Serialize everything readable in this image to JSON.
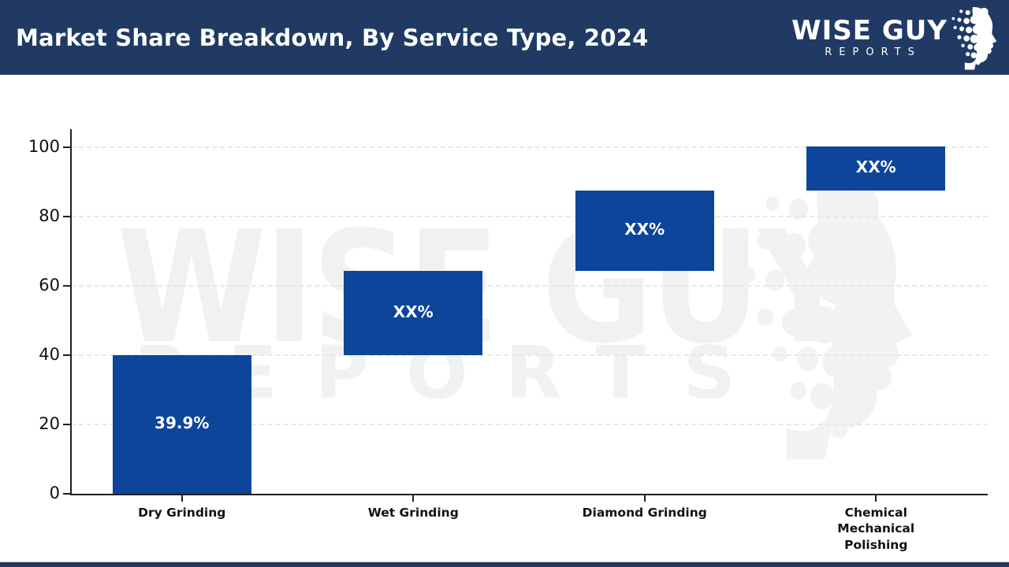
{
  "header": {
    "title": "Market Share Breakdown, By Service Type, 2024",
    "logo": {
      "line1": "WISE GUY",
      "line2": "REPORTS"
    }
  },
  "watermark": {
    "line1": "WISE GUY",
    "line2": "REPORTS"
  },
  "colors": {
    "header_bg": "#203a64",
    "footer_bg": "#203a64",
    "bar": "#0c4599",
    "bar_label": "#ffffff",
    "axis": "#1f1f1f",
    "gridline": "#e7e7e7",
    "watermark": "#f1f1f1"
  },
  "chart_data": {
    "type": "bar",
    "subtype": "waterfall-stacked-progression",
    "title": "Market Share Breakdown, By Service Type, 2024",
    "categories": [
      "Dry Grinding",
      "Wet Grinding",
      "Diamond Grinding",
      "Chemical Mechanical Polishing"
    ],
    "segments": [
      {
        "category": "Dry Grinding",
        "start": 0,
        "end": 39.9,
        "label": "39.9%"
      },
      {
        "category": "Wet Grinding",
        "start": 40.0,
        "end": 64.3,
        "label": "XX%"
      },
      {
        "category": "Diamond Grinding",
        "start": 64.3,
        "end": 87.6,
        "label": "XX%"
      },
      {
        "category": "Chemical Mechanical Polishing",
        "start": 87.6,
        "end": 100.2,
        "label": "XX%"
      }
    ],
    "yticks": [
      0,
      20,
      40,
      60,
      80,
      100
    ],
    "ylim": [
      0,
      105
    ],
    "xlabel": "",
    "ylabel": "",
    "grid": "horizontal-dashed",
    "legend": "none"
  }
}
